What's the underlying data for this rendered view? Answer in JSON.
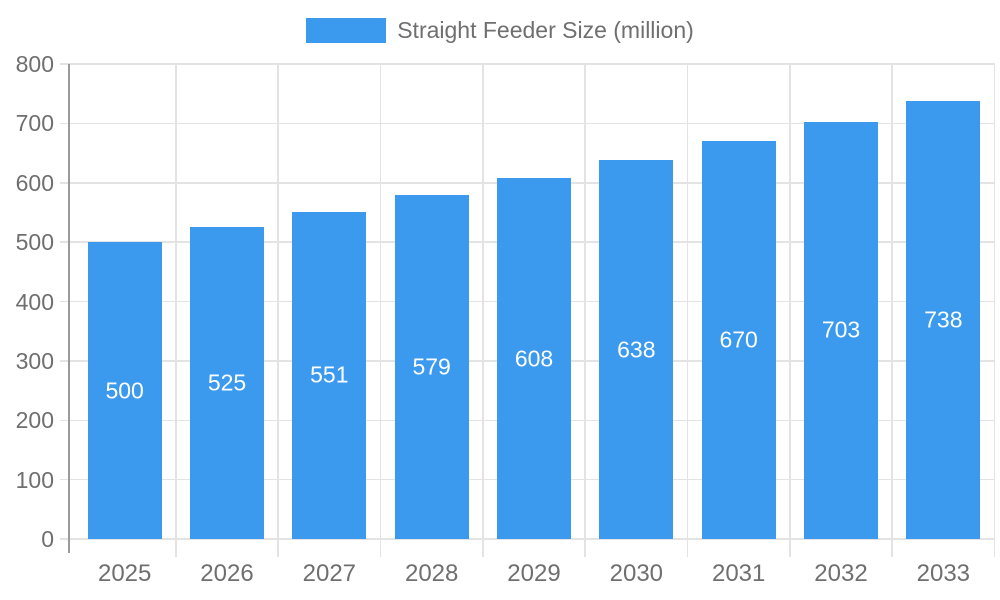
{
  "legend": {
    "label": "Straight Feeder Size (million)"
  },
  "chart_data": {
    "type": "bar",
    "title": "Straight Feeder Size (million)",
    "categories": [
      "2025",
      "2026",
      "2027",
      "2028",
      "2029",
      "2030",
      "2031",
      "2032",
      "2033"
    ],
    "series": [
      {
        "name": "Straight Feeder Size (million)",
        "values": [
          500,
          525,
          551,
          579,
          608,
          638,
          670,
          703,
          738
        ]
      }
    ],
    "value_labels": [
      500,
      525,
      551,
      579,
      608,
      638,
      670,
      703,
      738
    ],
    "value_label_position": "inside-middle",
    "xlabel": "",
    "ylabel": "",
    "ylim": [
      0,
      800
    ],
    "ytick_step": 100,
    "grid": "on",
    "legend_position": "top-center",
    "colors": {
      "bar": "#3B9AEE",
      "grid": "#E3E3E3",
      "axis": "#9A9A9A",
      "text": "#6F6F6F",
      "value_text": "#FFFFFF",
      "background": "#FFFFFF"
    }
  }
}
